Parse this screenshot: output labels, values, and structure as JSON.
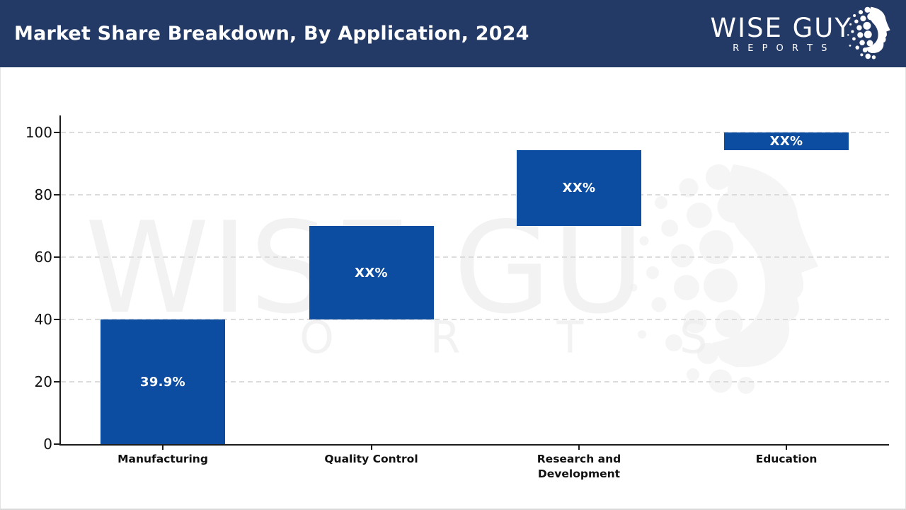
{
  "header": {
    "title": "Market Share Breakdown, By Application, 2024",
    "logo": {
      "line1": "WISE GUY",
      "line2": "R E P O R T S"
    }
  },
  "watermark": {
    "line1": "WISE GU",
    "line2": "P O R T S"
  },
  "chart_data": {
    "type": "bar",
    "subtype": "floating-waterfall",
    "title": "Market Share Breakdown, By Application, 2024",
    "categories": [
      "Manufacturing",
      "Quality Control",
      "Research and Development",
      "Education"
    ],
    "segments": [
      {
        "category": "Manufacturing",
        "start": 0,
        "end": 39.9,
        "share_pct": 39.9,
        "label": "39.9%"
      },
      {
        "category": "Quality Control",
        "start": 39.9,
        "end": 69.9,
        "share_pct": 30.0,
        "label": "XX%"
      },
      {
        "category": "Research and Development",
        "start": 69.9,
        "end": 94.4,
        "share_pct": 24.5,
        "label": "XX%"
      },
      {
        "category": "Education",
        "start": 94.4,
        "end": 100.0,
        "share_pct": 5.6,
        "label": "XX%"
      }
    ],
    "xlabel": "",
    "ylabel": "",
    "ylim": [
      0,
      100
    ],
    "yticks": [
      0,
      20,
      40,
      60,
      80,
      100
    ],
    "grid": "horizontal-dashed",
    "legend": "none",
    "colors": {
      "bar": "#0d4da1",
      "header_bg": "#233a66",
      "grid": "#dcdcdc",
      "axis": "#1c1c1c",
      "bar_label": "#ffffff",
      "tick_label": "#111111"
    }
  }
}
